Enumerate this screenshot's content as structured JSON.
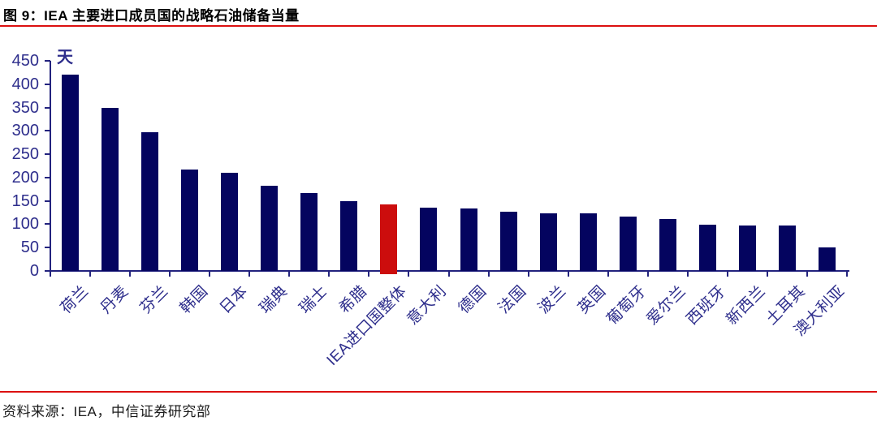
{
  "header": {
    "title": "图 9：IEA 主要进口成员国的战略石油储备当量"
  },
  "footer": {
    "source": "资料来源：IEA，中信证券研究部"
  },
  "colors": {
    "bar": "#04045f",
    "highlight_bar": "#cc0d0d",
    "axis": "#23237e",
    "axis_label": "#2e2e8c",
    "rule": "#dc1010",
    "title_text": "#000000",
    "source_text": "#1a1a1a"
  },
  "chart_data": {
    "type": "bar",
    "title": "图 9：IEA 主要进口成员国的战略石油储备当量",
    "xlabel": "",
    "ylabel": "天",
    "ylim": [
      0,
      450
    ],
    "y_ticks": [
      0,
      50,
      100,
      150,
      200,
      250,
      300,
      350,
      400,
      450
    ],
    "grid": false,
    "legend": "none",
    "categories": [
      "荷兰",
      "丹麦",
      "芬兰",
      "韩国",
      "日本",
      "瑞典",
      "瑞士",
      "希腊",
      "IEA进口国整体",
      "意大利",
      "德国",
      "法国",
      "波兰",
      "英国",
      "葡萄牙",
      "爱尔兰",
      "西班牙",
      "新西兰",
      "土耳其",
      "澳大利亚"
    ],
    "values": [
      420,
      350,
      297,
      218,
      210,
      182,
      166,
      149,
      143,
      135,
      134,
      126,
      124,
      123,
      117,
      111,
      99,
      98,
      98,
      50
    ],
    "highlight_index": 8,
    "highlight_category": "IEA进口国整体"
  }
}
